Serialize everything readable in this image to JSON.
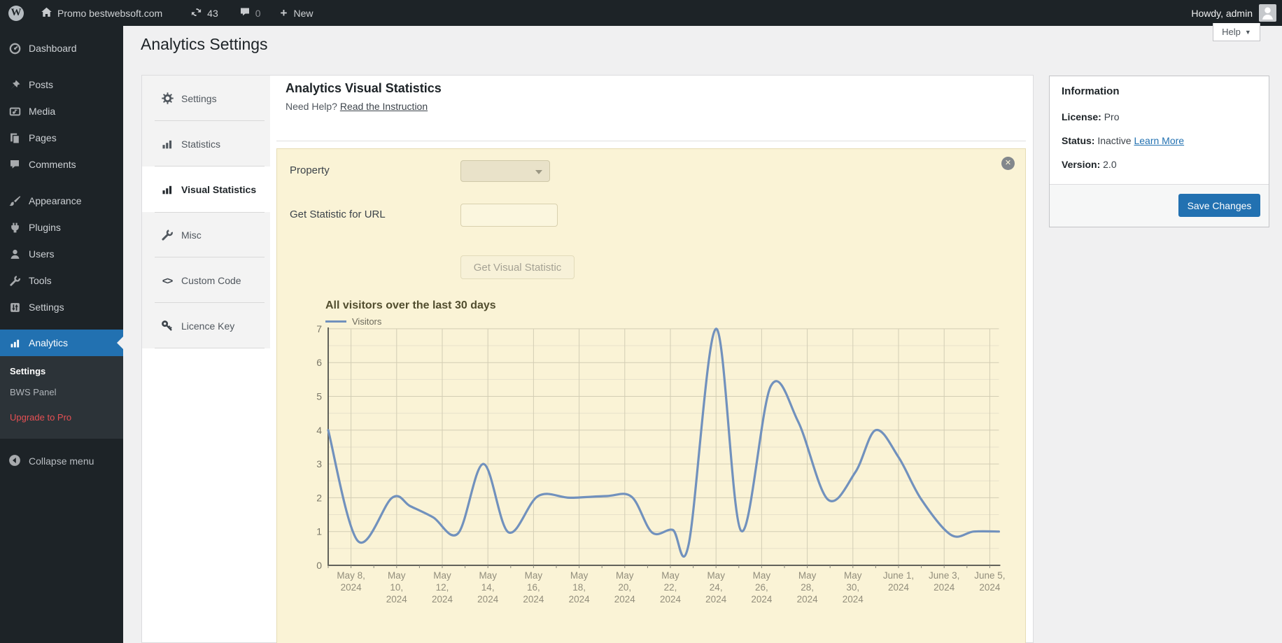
{
  "colors": {
    "accent_blue": "#2271b1",
    "menu_bg": "#1d2327",
    "submenu_bg": "#2c3338",
    "notice_bg": "#faf3d6",
    "chart_line": "#7191bd",
    "upgrade_red": "#e65054",
    "body_bg": "#f0f0f1"
  },
  "admin_bar": {
    "wp_glyph": "W",
    "site_name": "Promo bestwebsoft.com",
    "update_count": "43",
    "comment_count": "0",
    "plus": "+",
    "new_label": "New",
    "howdy": "Howdy, admin"
  },
  "help": {
    "label": "Help",
    "caret": "▼"
  },
  "page": {
    "title": "Analytics Settings"
  },
  "sidebar": {
    "items": [
      {
        "label": "Dashboard"
      },
      {
        "label": "Posts"
      },
      {
        "label": "Media"
      },
      {
        "label": "Pages"
      },
      {
        "label": "Comments"
      },
      {
        "label": "Appearance"
      },
      {
        "label": "Plugins"
      },
      {
        "label": "Users"
      },
      {
        "label": "Tools"
      },
      {
        "label": "Settings"
      },
      {
        "label": "Analytics"
      }
    ],
    "submenu": [
      {
        "label": "Settings"
      },
      {
        "label": "BWS Panel"
      },
      {
        "label": "Upgrade to Pro"
      }
    ],
    "collapse": "Collapse menu"
  },
  "tabs": [
    {
      "label": "Settings"
    },
    {
      "label": "Statistics"
    },
    {
      "label": "Visual Statistics"
    },
    {
      "label": "Misc"
    },
    {
      "label": "Custom Code"
    },
    {
      "label": "Licence Key"
    }
  ],
  "icons": {
    "code_glyph": "<>",
    "close_glyph": "✕"
  },
  "content": {
    "heading": "Analytics Visual Statistics",
    "need_help": "Need Help?",
    "instruction_link": "Read the Instruction",
    "property_label": "Property",
    "url_label": "Get Statistic for URL",
    "url_input_value": "",
    "get_visual_button": "Get Visual Statistic"
  },
  "info_box": {
    "title": "Information",
    "license_label": "License:",
    "license_value": "Pro",
    "status_label": "Status:",
    "status_value": "Inactive",
    "status_link": "Learn More",
    "version_label": "Version:",
    "version_value": "2.0",
    "save_button": "Save Changes"
  },
  "chart_data": {
    "type": "line",
    "title": "All visitors over the last 30 days",
    "ylabel": "",
    "xlabel": "",
    "ylim": [
      0,
      7
    ],
    "yticks": [
      0,
      1,
      2,
      3,
      4,
      5,
      6,
      7
    ],
    "grid": true,
    "legend_position": "top-left",
    "x_domain_days": [
      0,
      29.4
    ],
    "series": [
      {
        "name": "Visitors",
        "color": "#7191bd",
        "points_day_value": [
          [
            0,
            4
          ],
          [
            1.3,
            0.72
          ],
          [
            2.8,
            2.0
          ],
          [
            3.6,
            1.75
          ],
          [
            4.6,
            1.42
          ],
          [
            5.7,
            0.95
          ],
          [
            6.8,
            3.0
          ],
          [
            7.9,
            0.98
          ],
          [
            9.2,
            2.05
          ],
          [
            10.6,
            2.0
          ],
          [
            12.2,
            2.05
          ],
          [
            13.3,
            2.03
          ],
          [
            14.2,
            0.97
          ],
          [
            15.1,
            1.05
          ],
          [
            15.8,
            0.62
          ],
          [
            17,
            7.0
          ],
          [
            18.1,
            1.02
          ],
          [
            19.4,
            5.3
          ],
          [
            20.6,
            4.25
          ],
          [
            21.9,
            1.95
          ],
          [
            23.1,
            2.75
          ],
          [
            24,
            4.0
          ],
          [
            25,
            3.2
          ],
          [
            26,
            1.95
          ],
          [
            27.3,
            0.9
          ],
          [
            28.3,
            1.0
          ],
          [
            29.4,
            1.0
          ]
        ],
        "note": "values estimated from rendered curve; day ticks every 2 days starting May 8, 2024"
      }
    ],
    "x_ticks": [
      {
        "day": 1,
        "lines": [
          "May 8,",
          "2024"
        ]
      },
      {
        "day": 3,
        "lines": [
          "May",
          "10,",
          "2024"
        ]
      },
      {
        "day": 5,
        "lines": [
          "May",
          "12,",
          "2024"
        ]
      },
      {
        "day": 7,
        "lines": [
          "May",
          "14,",
          "2024"
        ]
      },
      {
        "day": 9,
        "lines": [
          "May",
          "16,",
          "2024"
        ]
      },
      {
        "day": 11,
        "lines": [
          "May",
          "18,",
          "2024"
        ]
      },
      {
        "day": 13,
        "lines": [
          "May",
          "20,",
          "2024"
        ]
      },
      {
        "day": 15,
        "lines": [
          "May",
          "22,",
          "2024"
        ]
      },
      {
        "day": 17,
        "lines": [
          "May",
          "24,",
          "2024"
        ]
      },
      {
        "day": 19,
        "lines": [
          "May",
          "26,",
          "2024"
        ]
      },
      {
        "day": 21,
        "lines": [
          "May",
          "28,",
          "2024"
        ]
      },
      {
        "day": 23,
        "lines": [
          "May",
          "30,",
          "2024"
        ]
      },
      {
        "day": 25,
        "lines": [
          "June 1,",
          "2024"
        ]
      },
      {
        "day": 27,
        "lines": [
          "June 3,",
          "2024"
        ]
      },
      {
        "day": 29,
        "lines": [
          "June 5,",
          "2024"
        ]
      }
    ]
  }
}
